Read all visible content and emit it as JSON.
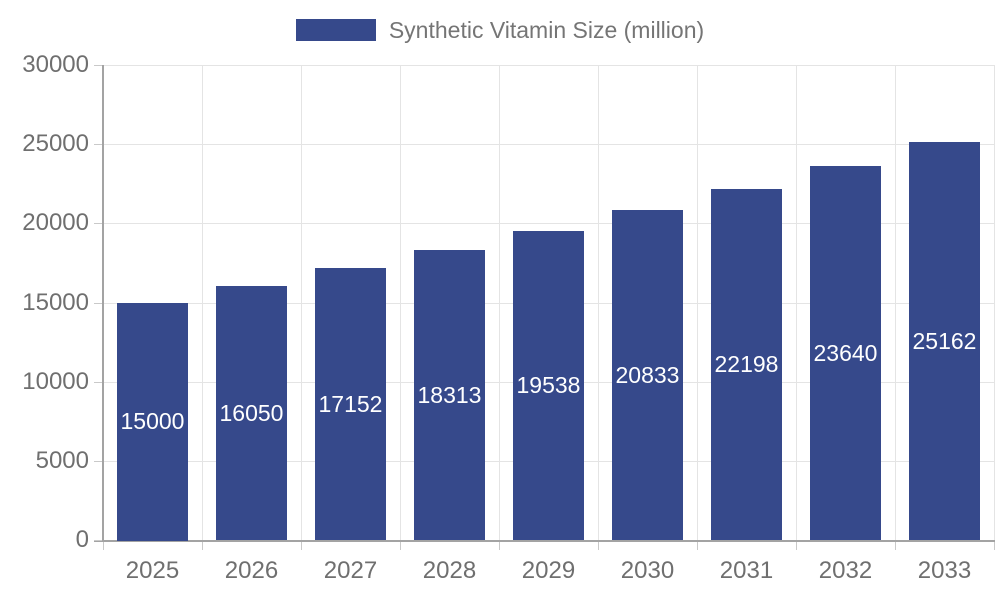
{
  "legend": {
    "label": "Synthetic Vitamin Size (million)"
  },
  "colors": {
    "bar": "#36498B",
    "bar_label_text": "#ffffff",
    "tick_label": "#6f6f6f",
    "legend_text": "#757575",
    "grid_line": "#e4e4e4",
    "axis_line": "#a3a3a3",
    "tick_mark": "#c9c9c9",
    "background": "#ffffff"
  },
  "chart_data": {
    "type": "bar",
    "title": "",
    "xlabel": "",
    "ylabel": "",
    "categories": [
      "2025",
      "2026",
      "2027",
      "2028",
      "2029",
      "2030",
      "2031",
      "2032",
      "2033"
    ],
    "series": [
      {
        "name": "Synthetic Vitamin Size (million)",
        "values": [
          15000,
          16050,
          17152,
          18313,
          19538,
          20833,
          22198,
          23640,
          25162
        ]
      }
    ],
    "ylim": [
      0,
      30000
    ],
    "yticks": [
      0,
      5000,
      10000,
      15000,
      20000,
      25000,
      30000
    ],
    "grid": true,
    "legend_position": "top",
    "bar_value_labels": "inside-center"
  }
}
